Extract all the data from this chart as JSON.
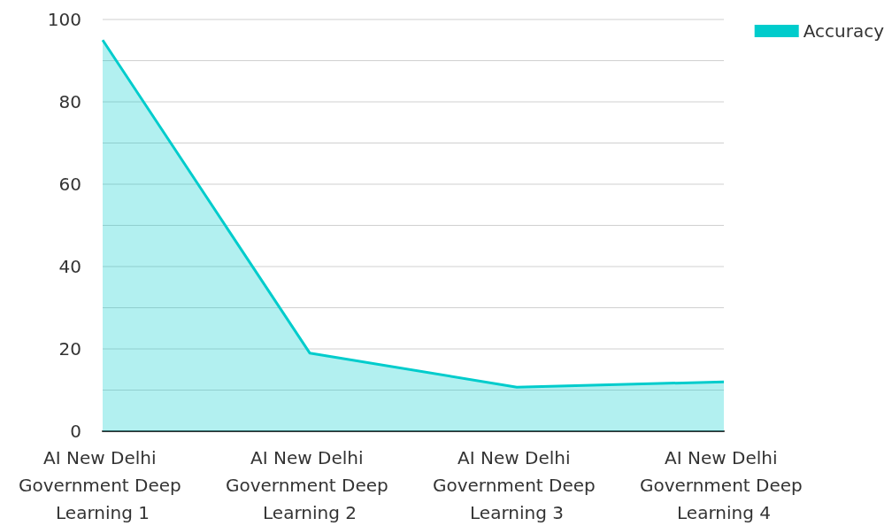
{
  "chart_data": {
    "type": "area",
    "categories": [
      "AI New Delhi Government Deep Learning 1",
      "AI New Delhi Government Deep Learning 2",
      "AI New Delhi Government Deep Learning 3",
      "AI New Delhi Government Deep Learning 4"
    ],
    "series": [
      {
        "name": "Accuracy",
        "color": "#00cccc",
        "values": [
          95,
          19,
          10.7,
          12
        ]
      }
    ],
    "ylim": [
      0,
      100
    ],
    "yticks": [
      0,
      {
        "value": 10,
        "label": null
      },
      20,
      {
        "value": 30,
        "label": null
      },
      40,
      {
        "value": 50,
        "label": null
      },
      60,
      {
        "value": 70,
        "label": null
      },
      80,
      {
        "value": 90,
        "label": null
      },
      100
    ],
    "grid": "y",
    "legend": "top right"
  }
}
